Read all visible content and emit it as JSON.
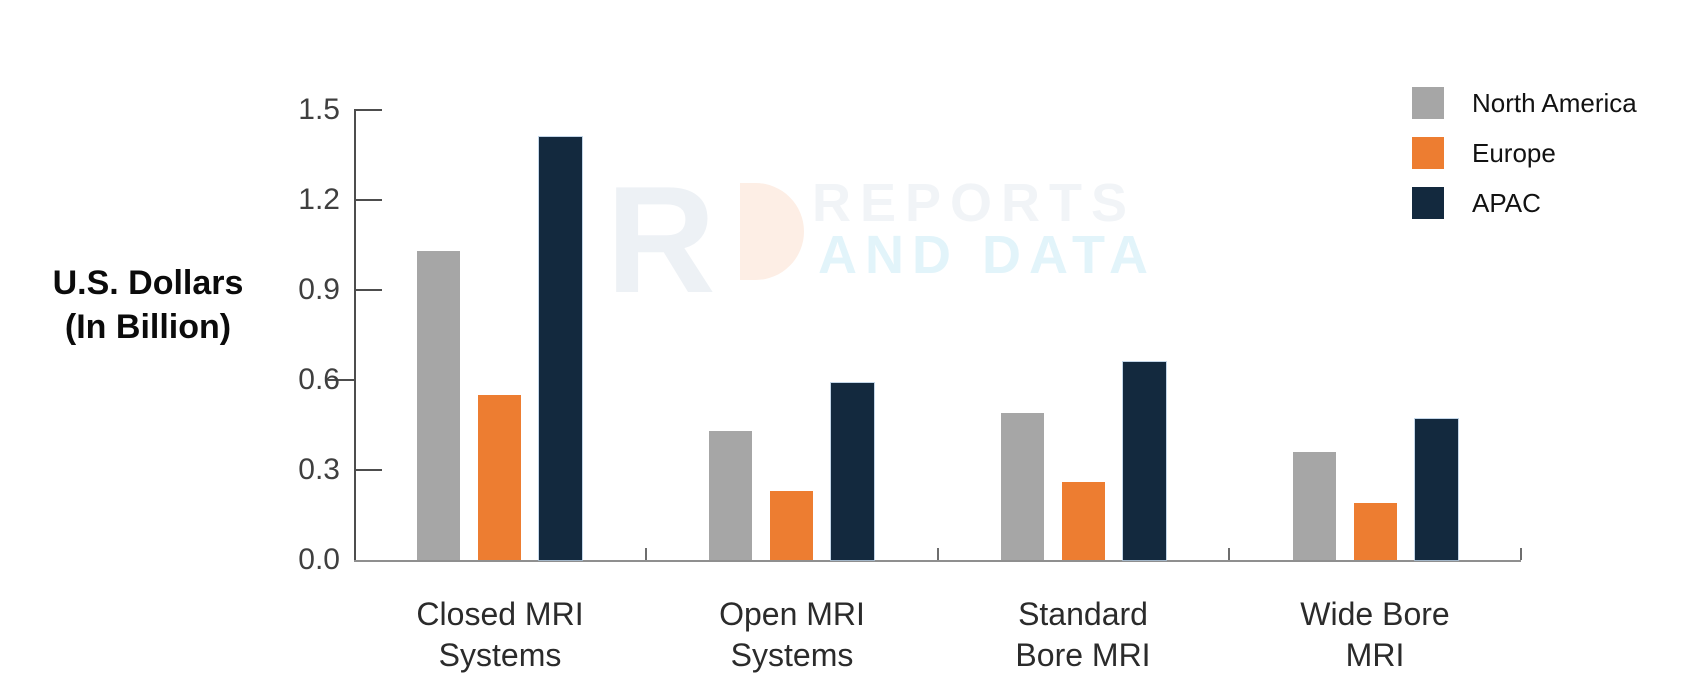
{
  "chart": {
    "y_axis_title_line1": "U.S. Dollars",
    "y_axis_title_line2": "(In Billion)"
  },
  "chart_data": {
    "type": "bar",
    "title": "",
    "ylabel": "U.S. Dollars (In Billion)",
    "xlabel": "",
    "ylim": [
      0,
      1.5
    ],
    "ytick_labels": [
      "0.0",
      "0.3",
      "0.6",
      "0.9",
      "1.2",
      "1.5"
    ],
    "grid": false,
    "legend_position": "top-right",
    "categories": [
      "Closed MRI Systems",
      "Open MRI Systems",
      "Standard Bore MRI",
      "Wide Bore MRI"
    ],
    "category_label_lines": [
      [
        "Closed MRI",
        "Systems"
      ],
      [
        "Open MRI",
        "Systems"
      ],
      [
        "Standard",
        "Bore MRI"
      ],
      [
        "Wide Bore",
        "MRI"
      ]
    ],
    "series": [
      {
        "name": "North America",
        "color": "#a6a6a6",
        "values": [
          1.03,
          0.43,
          0.49,
          0.36
        ]
      },
      {
        "name": "Europe",
        "color": "#ed7d31",
        "values": [
          0.55,
          0.23,
          0.26,
          0.19
        ]
      },
      {
        "name": "APAC",
        "color": "#13293e",
        "values": [
          1.41,
          0.59,
          0.66,
          0.47
        ]
      }
    ]
  },
  "watermark": {
    "r_letter": "R",
    "line1": "REPORTS",
    "line2": "AND DATA"
  }
}
